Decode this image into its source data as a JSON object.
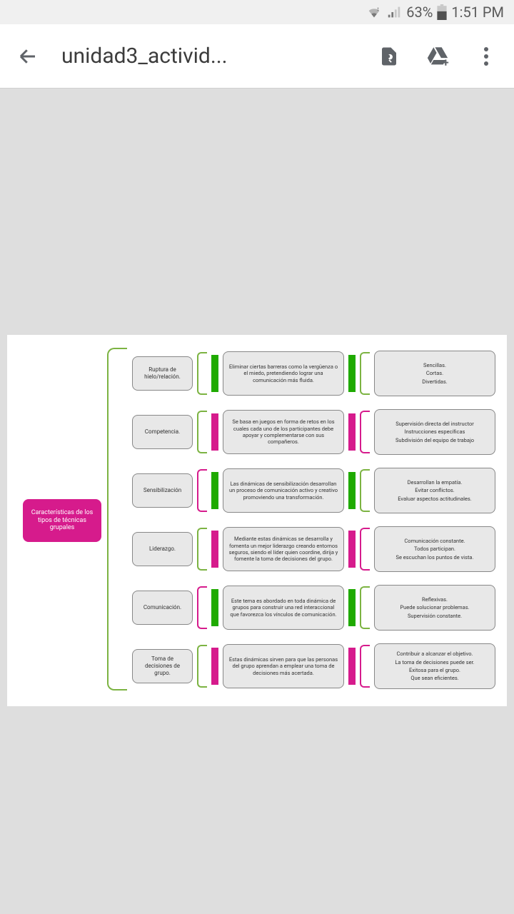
{
  "status": {
    "battery": "63%",
    "time": "1:51 PM"
  },
  "appbar": {
    "title": "unidad3_activid..."
  },
  "colors": {
    "root_bg": "#d61b8c",
    "green": "#7cb342",
    "bar_green": "#1faa00",
    "pink": "#d61b8c",
    "node_bg": "#e8e8e8"
  },
  "diagram": {
    "root": "Características de los tipos de técnicas grupales",
    "rows": [
      {
        "cat": "Ruptura de hielo/relación.",
        "b1": "green",
        "bar": "green",
        "b2": "green",
        "mid": "Eliminar ciertas barreras como la vergüenza o el miedo, pretendiendo lograr una comunicación más fluida.",
        "right": [
          "Sencillas.",
          "Cortas.",
          "Divertidas."
        ]
      },
      {
        "cat": "Competencia.",
        "b1": "green",
        "bar": "pink",
        "b2": "pink",
        "mid": "Se basa en juegos en forma de retos en los cuales cada uno de los participantes debe apoyar y complementarse con sus compañeros.",
        "right": [
          "Supervisión directa del instructor",
          "Instrucciones específicas",
          "Subdivisión del equipo de trabajo"
        ]
      },
      {
        "cat": "Sensibilización",
        "b1": "pink",
        "bar": "green",
        "b2": "green",
        "mid": "Las dinámicas de sensibilización desarrollan un proceso de comunicación activo y creativo promoviendo una transformación.",
        "right": [
          "Desarrollan la empatía.",
          "Evitar conflictos.",
          "Evaluar aspectos actitudinales."
        ]
      },
      {
        "cat": "Liderazgo.",
        "b1": "green",
        "bar": "pink",
        "b2": "pink",
        "mid": "Mediante estas dinámicas se desarrolla y fomenta un mejor liderazgo creando entornos seguros, siendo el líder quien coordine, dirija y fomente la toma de decisiones del grupo.",
        "right": [
          "Comunicación constante.",
          "Todos participan.",
          "Se escuchan los puntos de vista."
        ]
      },
      {
        "cat": "Comunicación.",
        "b1": "pink",
        "bar": "green",
        "b2": "green",
        "mid": "Este tema es abordado en toda dinámica de grupos para construir una red interaccional que favorezca los vínculos de comunicación.",
        "right": [
          "Reflexivas.",
          "Puede solucionar problemas.",
          "Supervisión constante."
        ]
      },
      {
        "cat": "Toma de decisiones de grupo.",
        "b1": "green",
        "bar": "pink",
        "b2": "pink",
        "mid": "Estas dinámicas sirven para que las personas del grupo aprendan a emplear una toma de decisiones más acertada.",
        "right": [
          "Contribuir a alcanzar el objetivo.",
          "La toma de decisiones puede ser.",
          "Exitosa para el grupo.",
          "Que sean eficientes."
        ]
      }
    ]
  }
}
